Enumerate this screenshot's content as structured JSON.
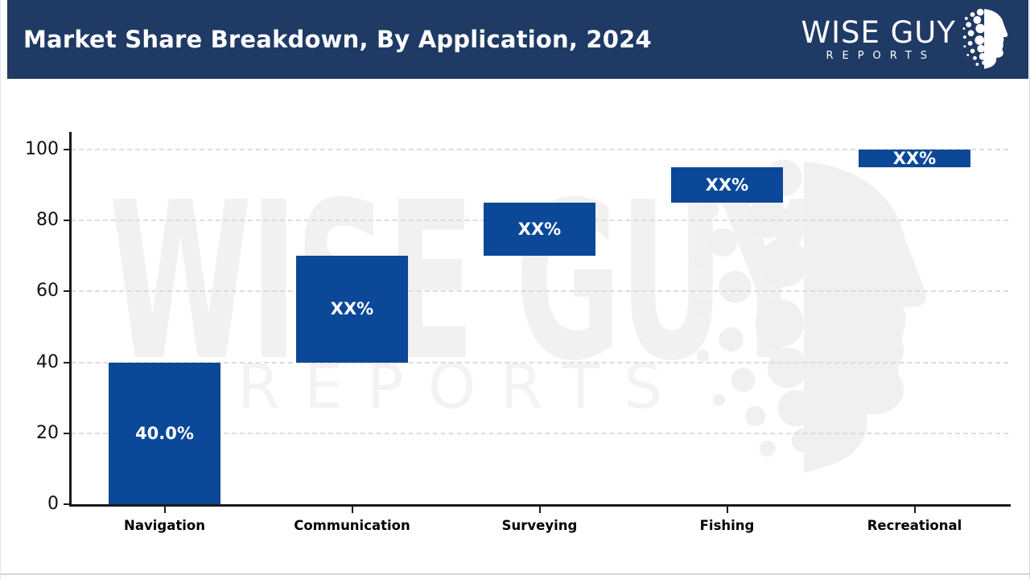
{
  "header": {
    "title": "Market Share Breakdown, By Application, 2024",
    "logo": {
      "wordmark": "WISE GUY",
      "subtext": "REPORTS",
      "icon": "dotted-face-profile"
    },
    "bg_color": "#1f3a64"
  },
  "watermark": {
    "wordmark": "WISE GUY",
    "subtext": "REPORTS"
  },
  "chart_data": {
    "type": "bar",
    "subtype": "waterfall-style segmented market-share bars",
    "title": "Market Share Breakdown, By Application, 2024",
    "categories": [
      "Navigation",
      "Communication",
      "Surveying",
      "Fishing",
      "Recreational"
    ],
    "segments": [
      {
        "category": "Navigation",
        "start": 0,
        "end": 40,
        "label": "40.0%"
      },
      {
        "category": "Communication",
        "start": 40,
        "end": 70,
        "label": "XX%"
      },
      {
        "category": "Surveying",
        "start": 70,
        "end": 85,
        "label": "XX%"
      },
      {
        "category": "Fishing",
        "start": 85,
        "end": 95,
        "label": "XX%"
      },
      {
        "category": "Recreational",
        "start": 95,
        "end": 100,
        "label": "XX%"
      }
    ],
    "xlabel": "",
    "ylabel": "",
    "ylim": [
      0,
      100
    ],
    "yticks": [
      0,
      20,
      40,
      60,
      80,
      100
    ],
    "grid": "horizontal-dashed",
    "legend": "none",
    "colors": {
      "bar": "#0b4898",
      "bar_label": "#ffffff",
      "header_bg": "#1f3a64",
      "grid": "#dcdcdc",
      "axis": "#1a1a1a"
    }
  }
}
